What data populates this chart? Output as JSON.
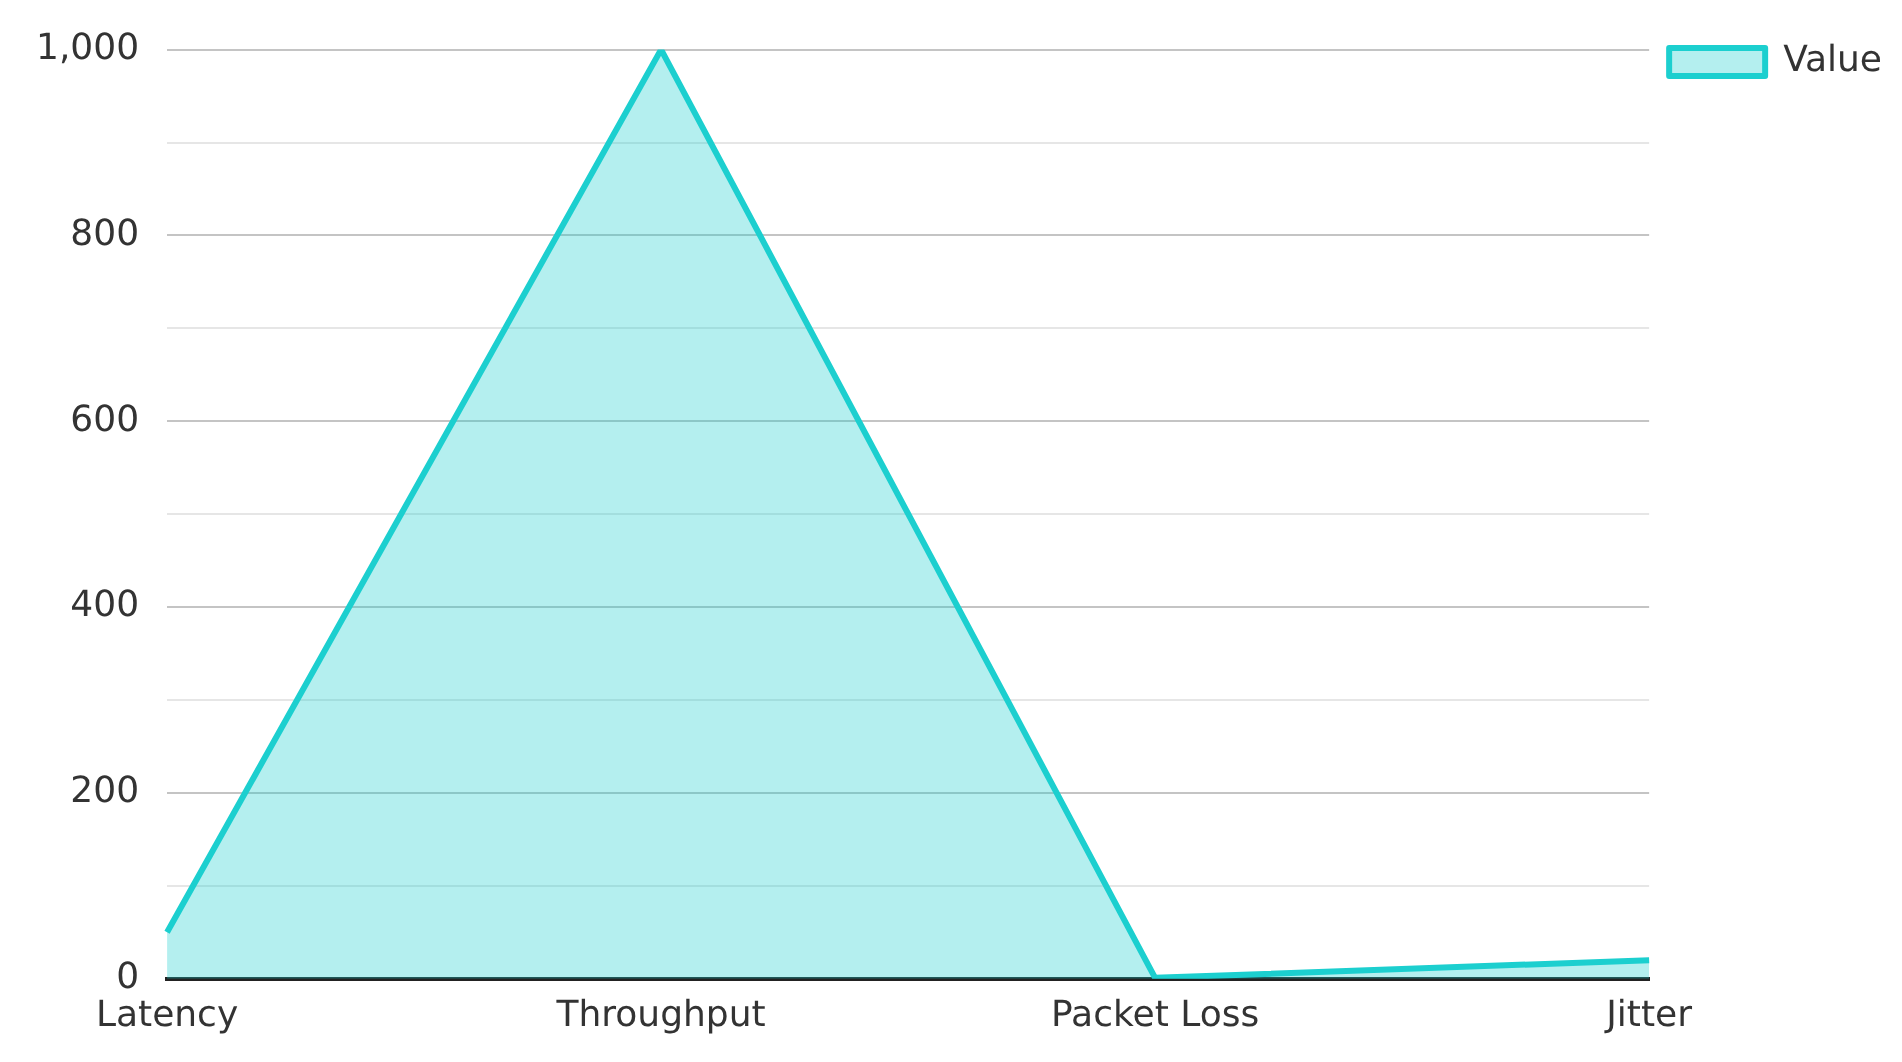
{
  "chart_data": {
    "type": "area",
    "categories": [
      "Latency",
      "Throughput",
      "Packet Loss",
      "Jitter"
    ],
    "series": [
      {
        "name": "Value",
        "color": "#1ccfcf",
        "values": [
          50,
          1000,
          1,
          20
        ]
      }
    ],
    "ylim": [
      0,
      1000
    ],
    "yticks": [
      0,
      {
        "value": 100,
        "label": null
      },
      200,
      {
        "value": 300,
        "label": null
      },
      400,
      {
        "value": 500,
        "label": null
      },
      600,
      {
        "value": 700,
        "label": null
      },
      800,
      {
        "value": 900,
        "label": null
      },
      {
        "value": 1000,
        "label": "1,000"
      }
    ],
    "grid": "y",
    "legend": "top right",
    "marker": "none",
    "line_style": "solid"
  }
}
